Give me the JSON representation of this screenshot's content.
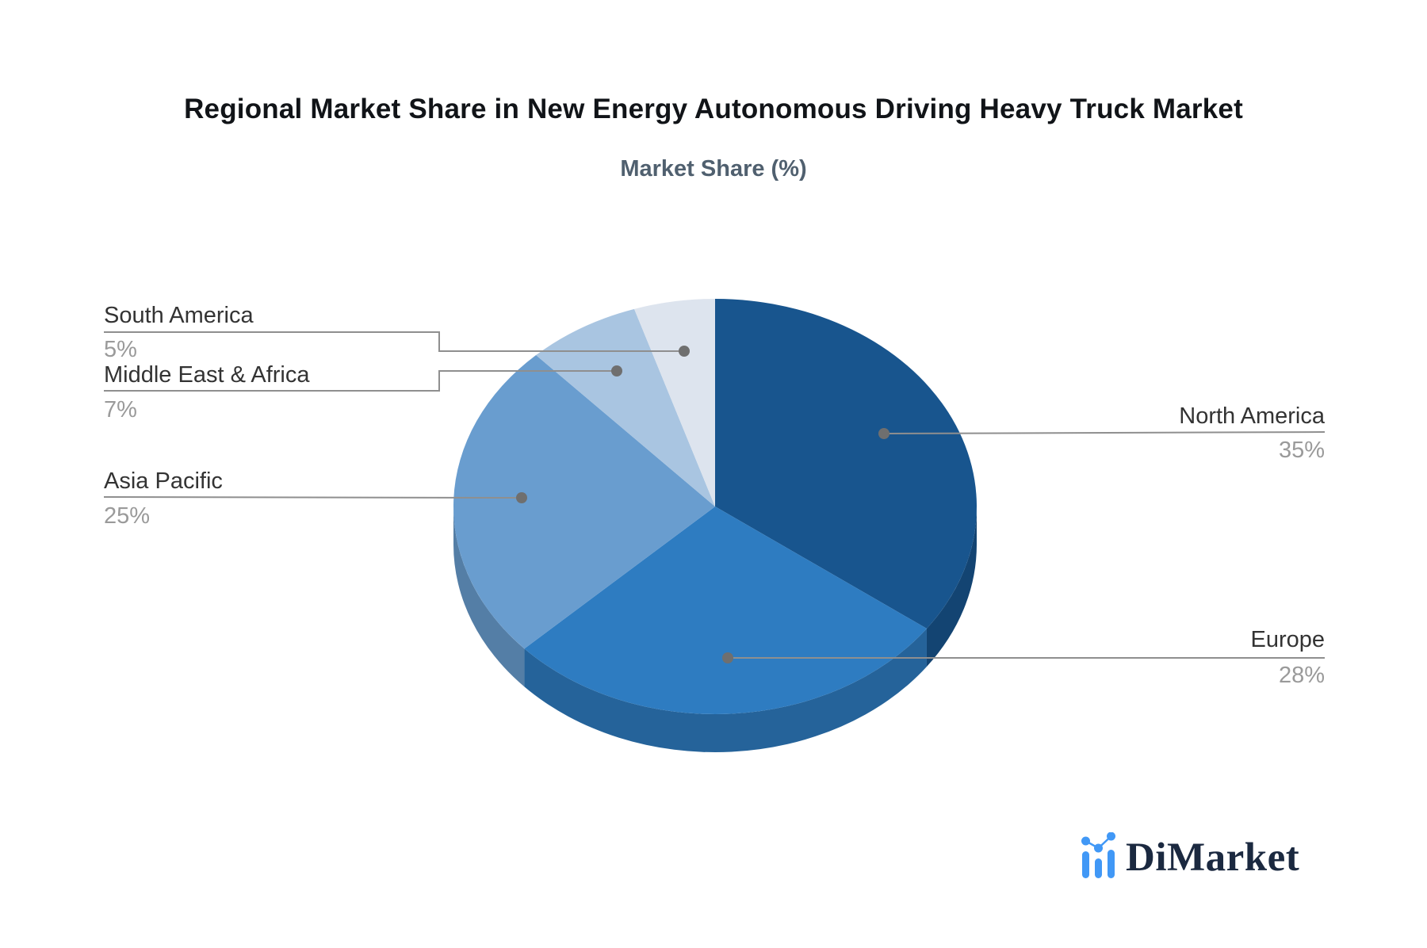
{
  "title": "Regional Market Share in New Energy Autonomous Driving Heavy Truck Market",
  "subtitle": "Market Share (%)",
  "chart_data": {
    "type": "pie",
    "style": "3d-pie",
    "title": "Regional Market Share in New Energy Autonomous Driving Heavy Truck Market",
    "subtitle": "Market Share (%)",
    "unit": "%",
    "order": "clockwise-from-top",
    "legend": "none",
    "slices": [
      {
        "label": "North America",
        "value": 35,
        "display": "35%",
        "color": "#18558e"
      },
      {
        "label": "Europe",
        "value": 28,
        "display": "28%",
        "color": "#2e7cc1"
      },
      {
        "label": "Asia Pacific",
        "value": 25,
        "display": "25%",
        "color": "#699dcf"
      },
      {
        "label": "Middle East & Africa",
        "value": 7,
        "display": "7%",
        "color": "#a9c5e1"
      },
      {
        "label": "South America",
        "value": 5,
        "display": "5%",
        "color": "#dde4ee"
      }
    ],
    "connector_color": "#8f8f8f",
    "dot_color": "#6f6f6f"
  },
  "logo": {
    "text": "DiMarket",
    "icon": "bar-line-chart-icon",
    "accent_color": "#4198f6",
    "text_color": "#1b2940"
  }
}
